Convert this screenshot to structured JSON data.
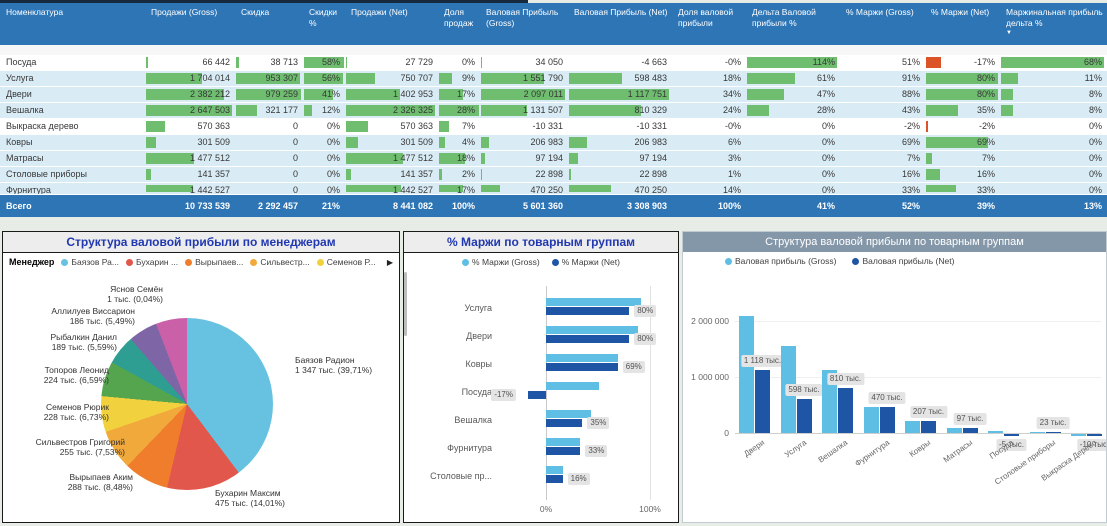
{
  "colors": {
    "header_blue": "#2E75B6",
    "row_band": "#D9ECF5",
    "bar_green": "#6FBE70",
    "bar_red": "#DB5327",
    "series_light_blue": "#5FBEE3",
    "series_dark_blue": "#1F55A5",
    "panel_title_blue": "#2138B0",
    "panel3_header_bg": "#8497A8"
  },
  "table": {
    "type": "table",
    "sort_column": "Маржинальная прибыль дельта %",
    "sort_indicator": "▼",
    "columns": [
      "Номенклатура",
      "Продажи (Gross)",
      "Скидка",
      "Скидки %",
      "Продажи (Net)",
      "Доля продаж",
      "Валовая Прибыль (Gross)",
      "Валовая Прибыль (Net)",
      "Доля валовой прибыли",
      "Дельта Валовой прибыли %",
      "% Маржи (Gross)",
      "% Маржи (Net)",
      "Маржинальная прибыль дельта %"
    ],
    "rows": [
      {
        "row_bg": "#FFFFFF",
        "cells": [
          "Посуда",
          "66 442",
          "38 713",
          "58%",
          "27 729",
          "0%",
          "34 050",
          "-4 663",
          "-0%",
          "114%",
          "51%",
          "-17%",
          "68%"
        ]
      },
      {
        "cells": [
          "Услуга",
          "1 704 014",
          "953 307",
          "56%",
          "750 707",
          "9%",
          "1 551 790",
          "598 483",
          "18%",
          "61%",
          "91%",
          "80%",
          "11%"
        ]
      },
      {
        "cells": [
          "Двери",
          "2 382 212",
          "979 259",
          "41%",
          "1 402 953",
          "17%",
          "2 097 011",
          "1 117 751",
          "34%",
          "47%",
          "88%",
          "80%",
          "8%"
        ]
      },
      {
        "cells": [
          "Вешалка",
          "2 647 503",
          "321 177",
          "12%",
          "2 326 325",
          "28%",
          "1 131 507",
          "810 329",
          "24%",
          "28%",
          "43%",
          "35%",
          "8%"
        ]
      },
      {
        "row_bg": "#FFFFFF",
        "cells": [
          "Выкраска дерево",
          "570 363",
          "0",
          "0%",
          "570 363",
          "7%",
          "-10 331",
          "-10 331",
          "-0%",
          "0%",
          "-2%",
          "-2%",
          "0%"
        ]
      },
      {
        "cells": [
          "Ковры",
          "301 509",
          "0",
          "0%",
          "301 509",
          "4%",
          "206 983",
          "206 983",
          "6%",
          "0%",
          "69%",
          "69%",
          "0%"
        ]
      },
      {
        "cells": [
          "Матрасы",
          "1 477 512",
          "0",
          "0%",
          "1 477 512",
          "18%",
          "97 194",
          "97 194",
          "3%",
          "0%",
          "7%",
          "7%",
          "0%"
        ]
      },
      {
        "cells": [
          "Столовые приборы",
          "141 357",
          "0",
          "0%",
          "141 357",
          "2%",
          "22 898",
          "22 898",
          "1%",
          "0%",
          "16%",
          "16%",
          "0%"
        ]
      },
      {
        "clipped": true,
        "cells": [
          "Фурнитура",
          "1 442 527",
          "0",
          "0%",
          "1 442 527",
          "17%",
          "470 250",
          "470 250",
          "14%",
          "0%",
          "33%",
          "33%",
          "0%"
        ]
      }
    ],
    "total": {
      "cells": [
        "Всего",
        "10 733 539",
        "2 292 457",
        "21%",
        "8 441 082",
        "100%",
        "5 601 360",
        "3 308 903",
        "100%",
        "41%",
        "52%",
        "39%",
        "13%"
      ]
    }
  },
  "chart_data": [
    {
      "type": "pie",
      "title": "Структура валовой прибыли по менеджерам",
      "legend_title": "Менеджер",
      "legend_items": [
        "Баязов Ра...",
        "Бухарин ...",
        "Вырыпаев...",
        "Сильвестр...",
        "Семенов Р..."
      ],
      "slices": [
        {
          "name": "Баязов Радион",
          "value_label": "1 347 тыс. (39,71%)",
          "pct": 39.71,
          "color": "#66C2E0"
        },
        {
          "name": "Бухарин Максим",
          "value_label": "475 тыс. (14,01%)",
          "pct": 14.01,
          "color": "#E2574C"
        },
        {
          "name": "Вырыпаев Аким",
          "value_label": "288 тыс. (8,48%)",
          "pct": 8.48,
          "color": "#EF7D2B"
        },
        {
          "name": "Сильвестров Григорий",
          "value_label": "255 тыс. (7,53%)",
          "pct": 7.53,
          "color": "#F2A93B"
        },
        {
          "name": "Семенов Рюрик",
          "value_label": "228 тыс. (6,73%)",
          "pct": 6.73,
          "color": "#F2D13E"
        },
        {
          "name": "Топоров Леонид",
          "value_label": "224 тыс. (6,59%)",
          "pct": 6.59,
          "color": "#55A54F"
        },
        {
          "name": "Рыбалкин Данил",
          "value_label": "189 тыс. (5,59%)",
          "pct": 5.59,
          "color": "#2E9E93"
        },
        {
          "name": "Аллилуев Виссарион",
          "value_label": "186 тыс. (5,49%)",
          "pct": 5.49,
          "color": "#7E66A6"
        },
        {
          "name": "",
          "value_label": "",
          "pct": 5.83,
          "color": "#C960A8"
        },
        {
          "name": "Яснов Семён",
          "value_label": "1 тыс. (0,04%)",
          "pct": 0.04,
          "color": "#BDBDBD"
        }
      ]
    },
    {
      "type": "bar",
      "orientation": "horizontal",
      "title": "% Маржи по товарным группам",
      "categories": [
        "Услуга",
        "Двери",
        "Ковры",
        "Посуда",
        "Вешалка",
        "Фурнитура",
        "Столовые пр..."
      ],
      "series": [
        {
          "name": "% Маржи (Gross)",
          "values": [
            91,
            88,
            69,
            51,
            43,
            33,
            16
          ]
        },
        {
          "name": "% Маржи (Net)",
          "values": [
            80,
            80,
            69,
            -17,
            35,
            33,
            16
          ]
        }
      ],
      "data_labels": [
        "80%",
        "80%",
        "69%",
        "-17%",
        "35%",
        "33%",
        "16%"
      ],
      "x_ticks": [
        "0%",
        "100%"
      ],
      "xlim": [
        0,
        100
      ]
    },
    {
      "type": "bar",
      "orientation": "vertical",
      "title": "Структура валовой прибыли по товарным группам",
      "categories": [
        "Двери",
        "Услуга",
        "Вешалка",
        "Фурнитура",
        "Ковры",
        "Матрасы",
        "Посуда",
        "Столовые приборы",
        "Выкраска Дерево"
      ],
      "series": [
        {
          "name": "Валовая прибыль (Gross)",
          "values": [
            2097011,
            1551790,
            1131507,
            470250,
            206983,
            97194,
            34050,
            22898,
            -10331
          ]
        },
        {
          "name": "Валовая прибыль (Net)",
          "values": [
            1117751,
            598483,
            810329,
            470250,
            206983,
            97194,
            -4663,
            22898,
            -10331
          ]
        }
      ],
      "data_labels": [
        "1 118 тыс.",
        "598 тыс.",
        "810 тыс.",
        "470 тыс.",
        "207 тыс.",
        "97 тыс.",
        "-5 тыс.",
        "23 тыс.",
        "-10 тыс."
      ],
      "y_ticks": [
        "2 000 000",
        "1 000 000",
        "0"
      ],
      "ylim": [
        -100000,
        2200000
      ]
    }
  ]
}
